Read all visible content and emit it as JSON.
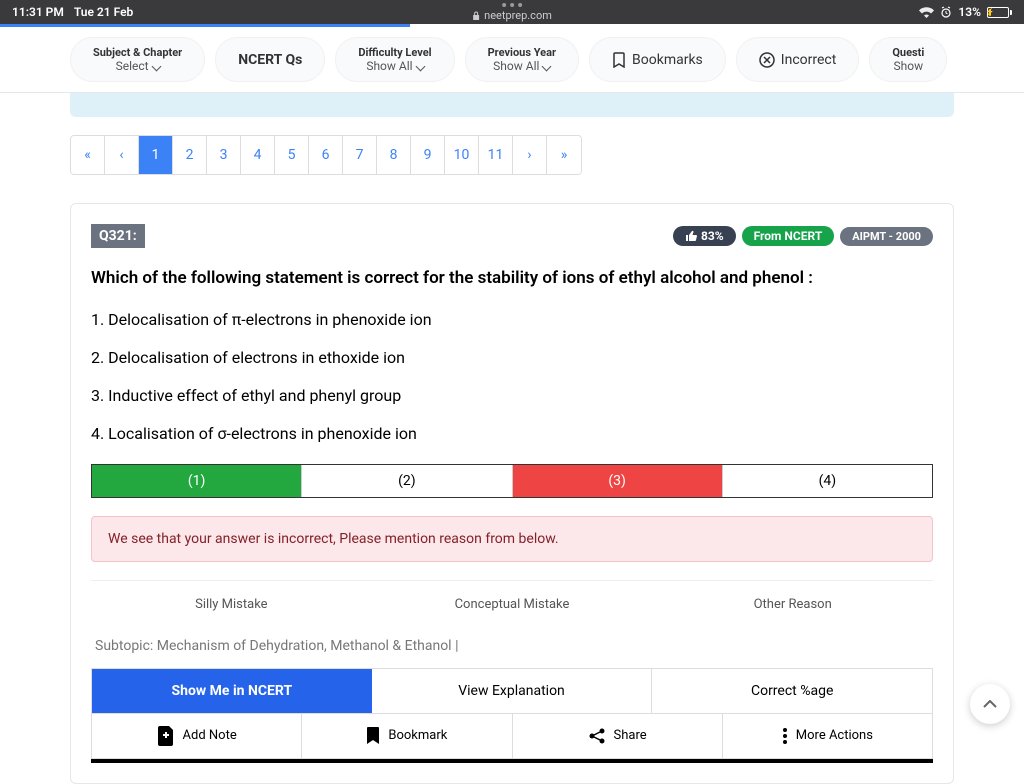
{
  "status": {
    "time": "11:31 PM",
    "date": "Tue 21 Feb",
    "url": "neetprep.com",
    "battery_pct": "13%",
    "battery_fill_width": "13%"
  },
  "progress_width": "40%",
  "filters": {
    "subject_chapter": {
      "top": "Subject & Chapter",
      "bottom": "Select"
    },
    "ncert_qs": "NCERT Qs",
    "difficulty": {
      "top": "Difficulty Level",
      "bottom": "Show All"
    },
    "previous_year": {
      "top": "Previous Year",
      "bottom": "Show All"
    },
    "bookmarks": "Bookmarks",
    "incorrect": "Incorrect",
    "questions": {
      "top": "Questi",
      "bottom": "Show"
    }
  },
  "pagination": {
    "first": "«",
    "prev": "‹",
    "pages": [
      "1",
      "2",
      "3",
      "4",
      "5",
      "6",
      "7",
      "8",
      "9",
      "10",
      "11"
    ],
    "active_index": 0,
    "next": "›",
    "last": "»"
  },
  "question": {
    "number": "Q321:",
    "upvote_pct": "83%",
    "from_ncert": "From NCERT",
    "exam_badge": "AIPMT - 2000",
    "text": "Which of the following statement is correct for the stability of ions of ethyl alcohol and phenol :",
    "options": [
      "1. Delocalisation of π-electrons in phenoxide ion",
      "2. Delocalisation of electrons in ethoxide ion",
      "3. Inductive effect of ethyl and phenyl group",
      "4. Localisation of σ-electrons in phenoxide ion"
    ],
    "answers": [
      "(1)",
      "(2)",
      "(3)",
      "(4)"
    ],
    "correct_index": 0,
    "selected_wrong_index": 2,
    "feedback": "We see that your answer is incorrect, Please mention reason from below.",
    "reasons": [
      "Silly Mistake",
      "Conceptual Mistake",
      "Other Reason"
    ],
    "subtopic": "Subtopic:  Mechanism of Dehydration, Methanol & Ethanol |"
  },
  "actions": {
    "show_ncert": "Show Me in NCERT",
    "view_explanation": "View Explanation",
    "correct_pct": "Correct %age",
    "add_note": "Add Note",
    "bookmark": "Bookmark",
    "share": "Share",
    "more_actions": "More Actions"
  }
}
